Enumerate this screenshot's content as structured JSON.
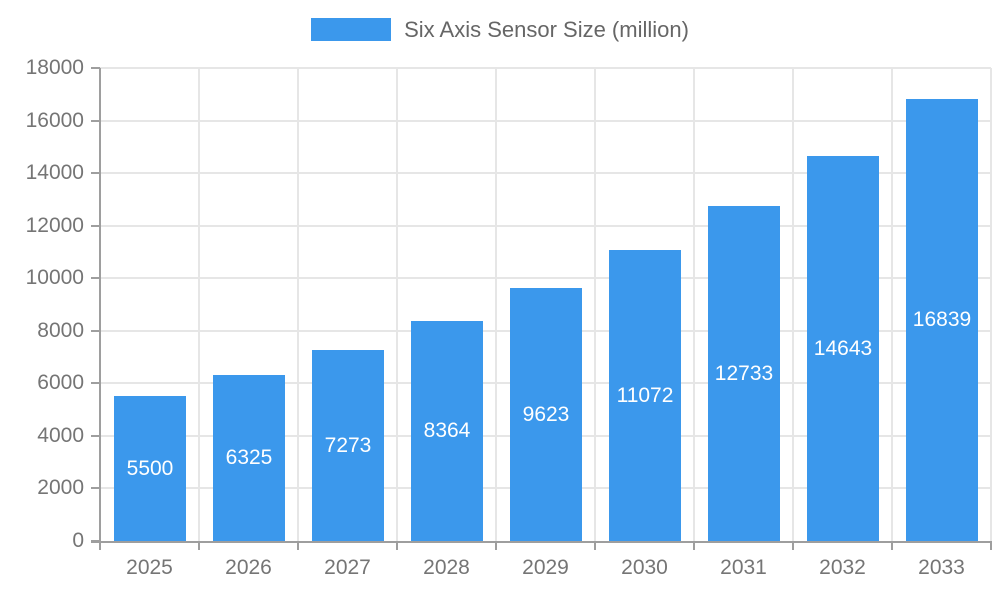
{
  "legend": {
    "label": "Six Axis Sensor Size (million)"
  },
  "chart_data": {
    "type": "bar",
    "title": "Six Axis Sensor Size (million)",
    "categories": [
      "2025",
      "2026",
      "2027",
      "2028",
      "2029",
      "2030",
      "2031",
      "2032",
      "2033"
    ],
    "values": [
      5500,
      6325,
      7273,
      8364,
      9623,
      11072,
      12733,
      14643,
      16839
    ],
    "series": [
      {
        "name": "Six Axis Sensor Size (million)",
        "values": [
          5500,
          6325,
          7273,
          8364,
          9623,
          11072,
          12733,
          14643,
          16839
        ]
      }
    ],
    "xlabel": "",
    "ylabel": "",
    "ylim": [
      0,
      18000
    ],
    "ytick_step": 2000,
    "yticks": [
      0,
      2000,
      4000,
      6000,
      8000,
      10000,
      12000,
      14000,
      16000,
      18000
    ],
    "grid": true,
    "legend_position": "top-center",
    "bar_value_labels": "inside-center",
    "colors": {
      "bar": "#3b98ec",
      "axis": "#9e9e9e",
      "grid": "#e6e6e6",
      "tick_label": "#757575",
      "value_label": "#ffffff",
      "legend_text": "#666666"
    }
  }
}
